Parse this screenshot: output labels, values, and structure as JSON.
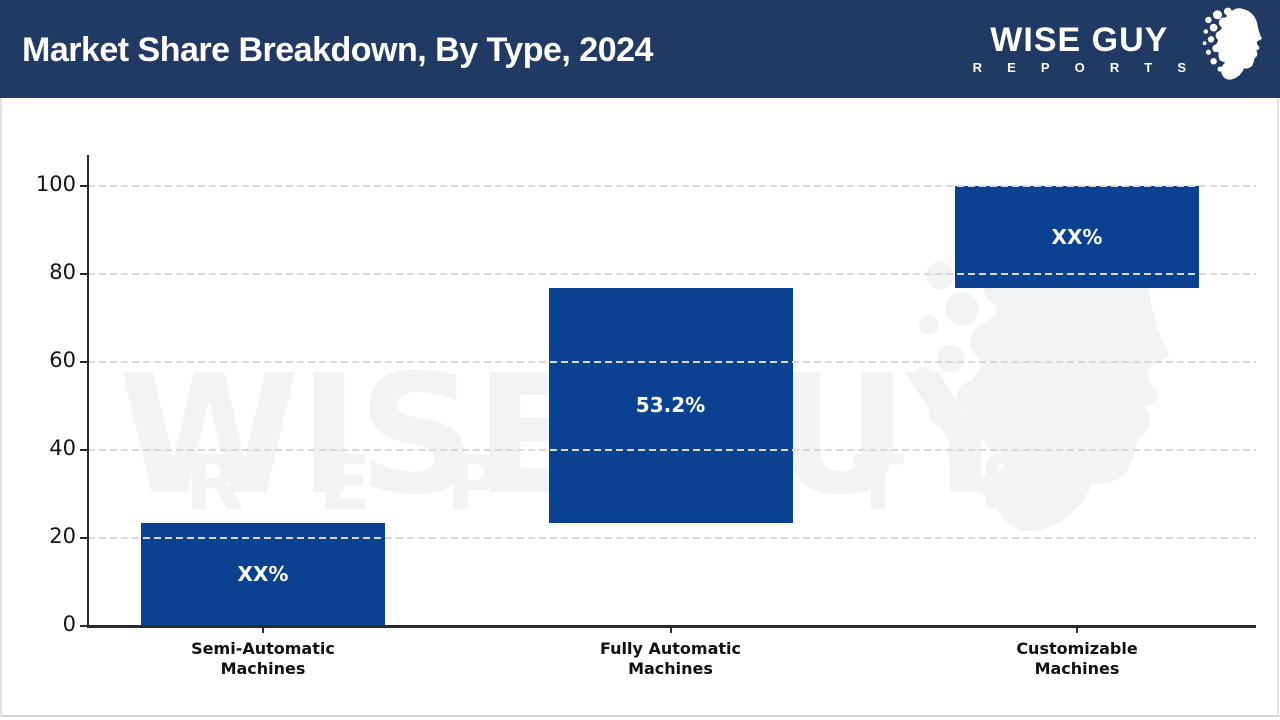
{
  "header": {
    "title": "Market Share Breakdown, By Type, 2024",
    "bg_color": "#213a64",
    "logo": {
      "line1": "WISE GUY",
      "line2": "REPORTS"
    }
  },
  "watermark": {
    "line1": "WISE GUY",
    "line2": "REPORTS"
  },
  "chart_data": {
    "type": "bar",
    "subtype": "waterfall-segments",
    "title": "Market Share Breakdown, By Type, 2024",
    "categories": [
      "Semi-Automatic Machines",
      "Fully Automatic Machines",
      "Customizable Machines"
    ],
    "category_lines": [
      [
        "Semi-Automatic",
        "Machines"
      ],
      [
        "Fully Automatic",
        "Machines"
      ],
      [
        "Customizable",
        "Machines"
      ]
    ],
    "segments": [
      {
        "start": 0,
        "end": 23.5,
        "label": "XX%"
      },
      {
        "start": 23.5,
        "end": 76.8,
        "label": "53.2%",
        "value": 53.2
      },
      {
        "start": 76.8,
        "end": 100,
        "label": "XX%"
      }
    ],
    "ylim": [
      0,
      100
    ],
    "yticks": [
      0,
      20,
      40,
      60,
      80,
      100
    ],
    "xlabel": "",
    "ylabel": "",
    "grid": "horizontal-dashed",
    "legend": "none",
    "bar_color": "#0a4191",
    "bar_label_color": "#ffffff",
    "grid_color": "#d9d9d9",
    "axis_color": "#2a2a2a"
  }
}
